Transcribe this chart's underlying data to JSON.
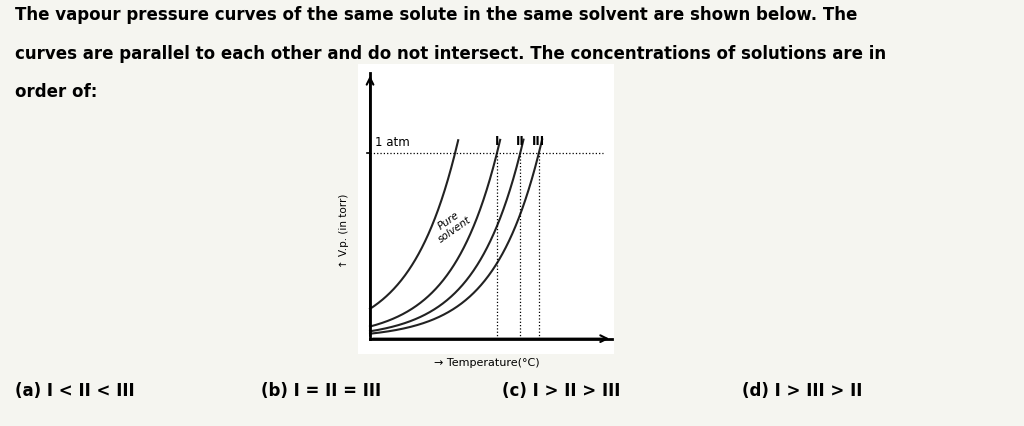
{
  "title_line1": "The vapour pressure curves of the same solute in the same solvent are shown below. The",
  "title_line2": "curves are parallel to each other and do not intersect. The concentrations of solutions are in",
  "title_line3": "order of:",
  "ylabel": "V.p. (in torr)",
  "xlabel": "Temperature(°C)",
  "atm_label": "1 atm",
  "pure_solvent_label": "Pure\nsolvent",
  "curve_roman_labels": [
    "I",
    "II",
    "III"
  ],
  "options": [
    "(a) I < II < III",
    "(b) I = II = III",
    "(c) I > II > III",
    "(d) I > III > II"
  ],
  "bg_color": "#f5f5f0",
  "plot_bg": "#ffffff",
  "curve_color": "#222222",
  "shifts": [
    0.0,
    1.8,
    2.8,
    3.6
  ],
  "curve_exp": 0.5,
  "xlim": [
    0,
    10
  ],
  "ylim": [
    0,
    8
  ],
  "atm_y": 6.2
}
